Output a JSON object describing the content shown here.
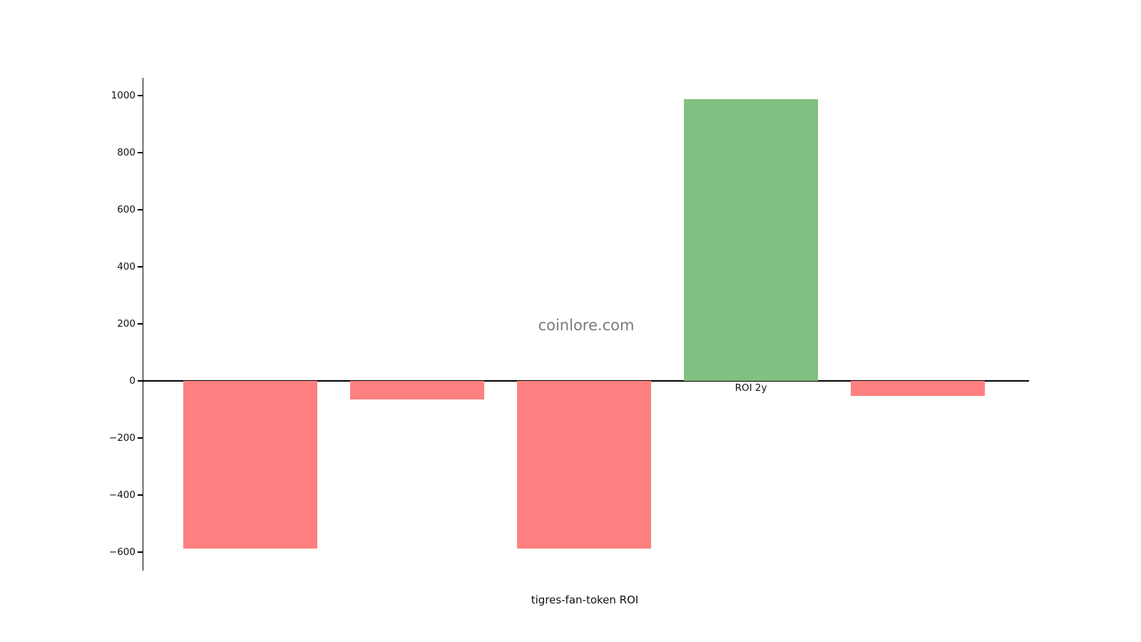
{
  "watermark": {
    "text": "coinlore.com",
    "color": "#7a7a7a"
  },
  "chart_data": {
    "type": "bar",
    "title": "tigres-fan-token ROI",
    "categories": [
      "",
      "",
      "",
      "ROI 2y",
      ""
    ],
    "visible_category_labels": [
      "ROI 2y"
    ],
    "values": [
      -587,
      -65,
      -587,
      987,
      -53
    ],
    "y_ticks": [
      1000,
      800,
      600,
      400,
      200,
      0,
      -200,
      -400,
      -600
    ],
    "y_tick_labels": [
      "1000",
      "800",
      "600",
      "400",
      "200",
      "0",
      "−200",
      "−400",
      "−600"
    ],
    "ylim": [
      -665,
      1063
    ],
    "xlabel": "",
    "ylabel": "",
    "grid": false,
    "legend": null,
    "bar_colors": {
      "positive": "#80c080",
      "negative": "#ff8080"
    },
    "axis_color": "#000000",
    "text_color": "#111111"
  }
}
